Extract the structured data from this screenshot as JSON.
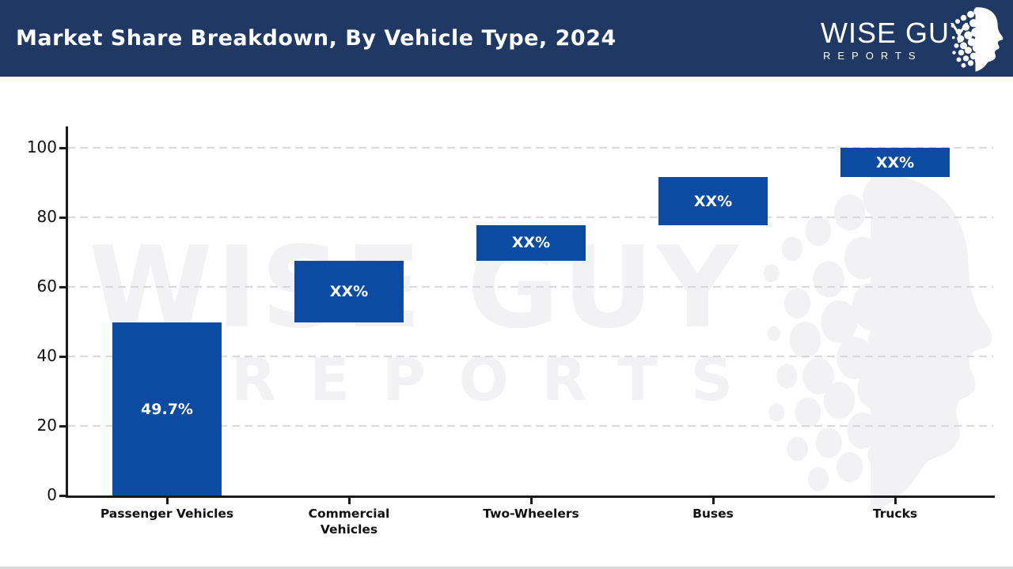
{
  "header": {
    "title": "Market Share Breakdown, By Vehicle Type, 2024",
    "background": "#1f3864",
    "logo": {
      "name_line": "WISE GUY",
      "sub_line": "REPORTS"
    }
  },
  "watermark": {
    "name_line": "WISE GUY",
    "sub_line": "REPORTS"
  },
  "colors": {
    "header_bg": "#1f3864",
    "bar_blue": "#0b4ba1",
    "grid_gray": "#d9d9d9",
    "axis_black": "#1a1a1a",
    "watermark_gray": "#f2f2f4",
    "bottom_line_gray": "#d9d9d9"
  },
  "chart_data": {
    "type": "bar",
    "subtype": "waterfall",
    "title": "Market Share Breakdown, By Vehicle Type, 2024",
    "categories": [
      "Passenger Vehicles",
      "Commercial Vehicles",
      "Two-Wheelers",
      "Buses",
      "Trucks"
    ],
    "category_lines": [
      [
        "Passenger Vehicles"
      ],
      [
        "Commercial",
        "Vehicles"
      ],
      [
        "Two-Wheelers"
      ],
      [
        "Buses"
      ],
      [
        "Trucks"
      ]
    ],
    "segments": [
      {
        "category": "Passenger Vehicles",
        "start": 0,
        "end": 49.7,
        "value_label": "49.7%"
      },
      {
        "category": "Commercial Vehicles",
        "start": 49.7,
        "end": 67.5,
        "value_label": "XX%"
      },
      {
        "category": "Two-Wheelers",
        "start": 67.5,
        "end": 77.8,
        "value_label": "XX%"
      },
      {
        "category": "Buses",
        "start": 77.8,
        "end": 91.5,
        "value_label": "XX%"
      },
      {
        "category": "Trucks",
        "start": 91.5,
        "end": 100,
        "value_label": "XX%"
      }
    ],
    "xlabel": "",
    "ylabel": "",
    "ylim": [
      0,
      100
    ],
    "yticks": [
      0,
      20,
      40,
      60,
      80,
      100
    ],
    "grid": true,
    "gridline_style": "dashed",
    "legend": false,
    "bar_color": "#0b4ba1",
    "value_label_color": "#ffffff"
  }
}
